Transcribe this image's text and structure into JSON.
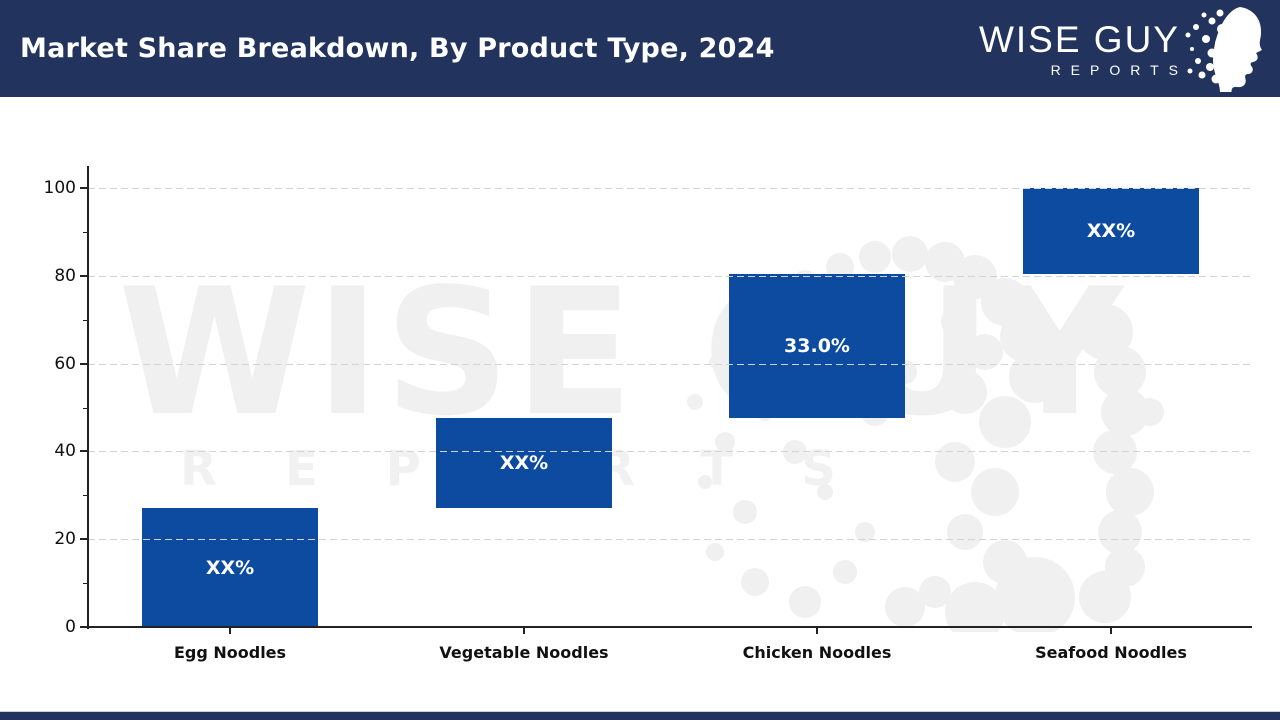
{
  "header": {
    "title": "Market Share Breakdown, By Product Type, 2024",
    "bg_color": "#22345e",
    "logo": {
      "primary": "WISE GUY",
      "secondary": "REPORTS"
    }
  },
  "watermark": {
    "primary": "WISE GUY",
    "secondary": "REPORTS"
  },
  "chart_data": {
    "type": "bar",
    "variant": "waterfall",
    "title": "Market Share Breakdown, By Product Type, 2024",
    "categories": [
      "Egg Noodles",
      "Vegetable Noodles",
      "Chicken Noodles",
      "Seafood Noodles"
    ],
    "segments": [
      {
        "category": "Egg Noodles",
        "start": 0,
        "end": 27,
        "value_label": "XX%"
      },
      {
        "category": "Vegetable Noodles",
        "start": 27,
        "end": 47.5,
        "value_label": "XX%"
      },
      {
        "category": "Chicken Noodles",
        "start": 47.5,
        "end": 80.5,
        "value_label": "33.0%"
      },
      {
        "category": "Seafood Noodles",
        "start": 80.5,
        "end": 100,
        "value_label": "XX%"
      }
    ],
    "y_ticks": [
      0,
      20,
      40,
      60,
      80,
      100
    ],
    "y_minor_ticks": [
      10,
      30,
      50,
      70,
      90
    ],
    "ylim": [
      0,
      105
    ],
    "xlabel": "",
    "ylabel": "",
    "grid": "horizontal-dashed",
    "legend": "none",
    "bar_color": "#0d4ba0",
    "bar_label_color": "#ffffff"
  }
}
